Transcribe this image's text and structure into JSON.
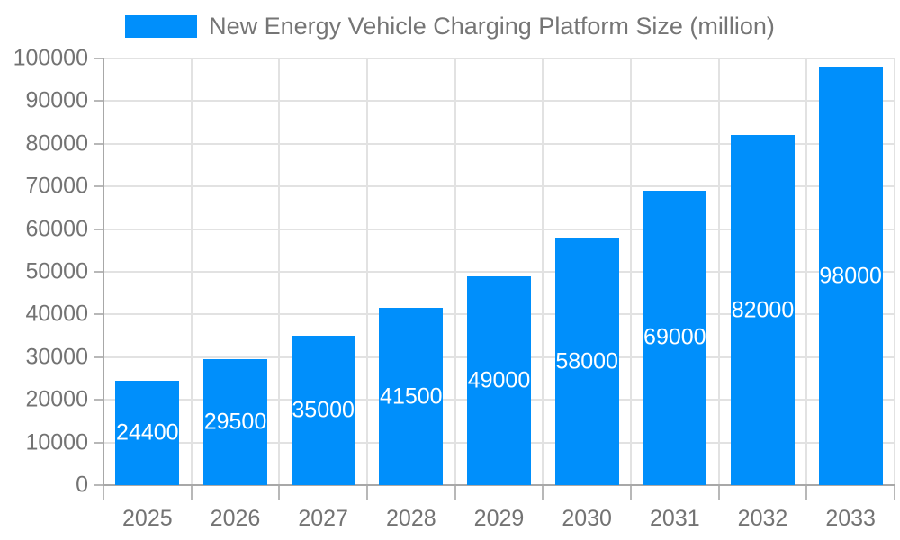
{
  "legend": {
    "label": "New Energy Vehicle Charging Platform Size (million)",
    "marker_color": "#008FFB"
  },
  "chart_data": {
    "type": "bar",
    "title": "New Energy Vehicle Charging Platform Size (million)",
    "categories": [
      "2025",
      "2026",
      "2027",
      "2028",
      "2029",
      "2030",
      "2031",
      "2032",
      "2033"
    ],
    "values": [
      24400,
      29500,
      35000,
      41500,
      49000,
      58000,
      69000,
      82000,
      98000
    ],
    "value_labels": [
      "24400",
      "29500",
      "35000",
      "41500",
      "49000",
      "58000",
      "69000",
      "82000",
      "98000"
    ],
    "y_tick_labels": [
      "0",
      "10000",
      "20000",
      "30000",
      "40000",
      "50000",
      "60000",
      "70000",
      "80000",
      "90000",
      "100000"
    ],
    "xlabel": "",
    "ylabel": "",
    "ylim": [
      0,
      100000
    ],
    "ytick_step": 10000,
    "grid": true,
    "legend_position": "top",
    "bar_color": "#008FFB",
    "value_label_color": "#FFFFFF",
    "axis_text_color": "#737373",
    "legend_text_color": "#757575",
    "gridline_color": "#E2E2E2"
  }
}
